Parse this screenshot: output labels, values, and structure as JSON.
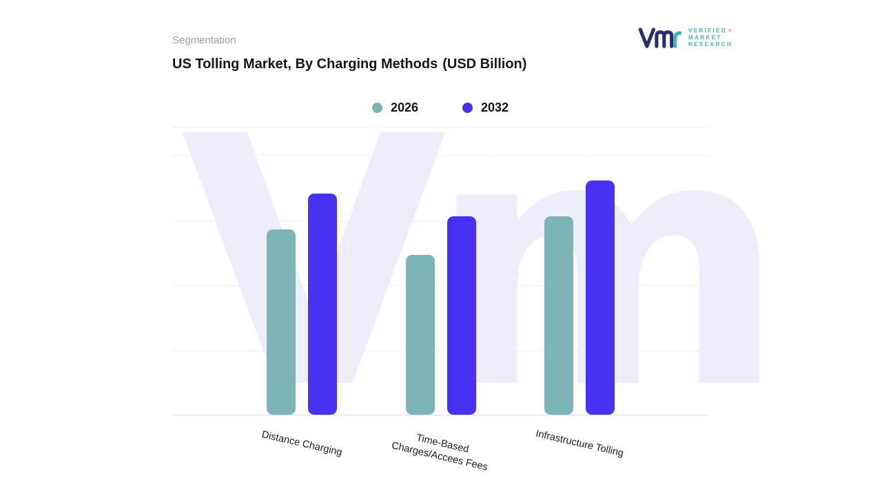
{
  "header": {
    "eyebrow": "Segmentation",
    "title": "US Tolling Market, By Charging Methods",
    "title_suffix": "(USD Billion)"
  },
  "logo": {
    "lines": [
      "VERIFIED",
      "MARKET",
      "RESEARCH"
    ],
    "registered": "®"
  },
  "brand": {
    "navy": "#2b2e6d",
    "teal": "#3eb6ad",
    "orange": "#f26a21",
    "bar_teal": "#7db4b8",
    "bar_blue": "#4832f2",
    "watermark": "#edeef9"
  },
  "legend": [
    {
      "label": "2026",
      "color": "#7db4b8"
    },
    {
      "label": "2032",
      "color": "#4832f2"
    }
  ],
  "watermark_text": "Vm",
  "chart_data": {
    "type": "bar",
    "title": "US Tolling Market, By Charging Methods (USD Billion)",
    "categories": [
      "Distance Charging",
      "Time-Based\nCharges/Accees Fees",
      "Infrastructure  Tolling"
    ],
    "series": [
      {
        "name": "2026",
        "color": "#7db4b8",
        "values": [
          2.85,
          2.45,
          3.05
        ]
      },
      {
        "name": "2032",
        "color": "#4832f2",
        "values": [
          3.4,
          3.05,
          3.6
        ]
      }
    ],
    "ylim": [
      0,
      4
    ],
    "grid": true,
    "legend_position": "top",
    "value_axis_visible": false
  }
}
